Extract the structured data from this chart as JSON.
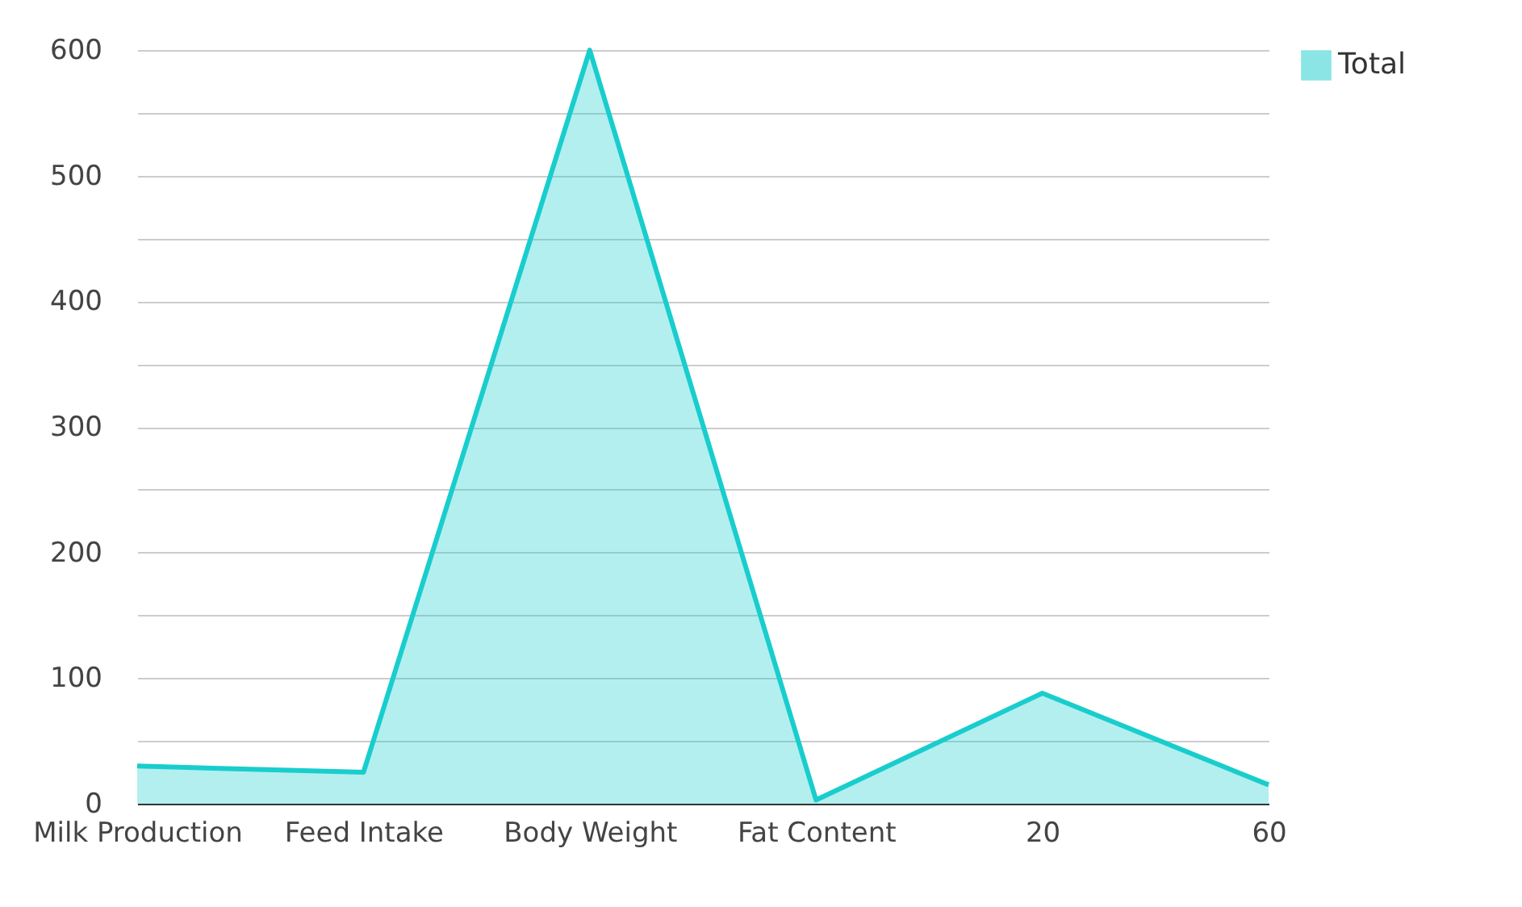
{
  "chart_data": {
    "type": "area",
    "categories": [
      "Milk Production",
      "Feed Intake",
      "Body Weight",
      "Fat Content",
      "20",
      "60"
    ],
    "series": [
      {
        "name": "Total",
        "color": "#19cdcd",
        "values": [
          30,
          25,
          600,
          3,
          88,
          15
        ]
      }
    ],
    "ylim": [
      0,
      600
    ],
    "yticks": [
      0,
      {
        "value": 50,
        "label": null
      },
      100,
      {
        "value": 150,
        "label": null
      },
      200,
      {
        "value": 250,
        "label": null
      },
      300,
      {
        "value": 350,
        "label": null
      },
      400,
      {
        "value": 450,
        "label": null
      },
      500,
      {
        "value": 550,
        "label": null
      },
      600
    ],
    "grid": "y",
    "legend": "top right"
  }
}
